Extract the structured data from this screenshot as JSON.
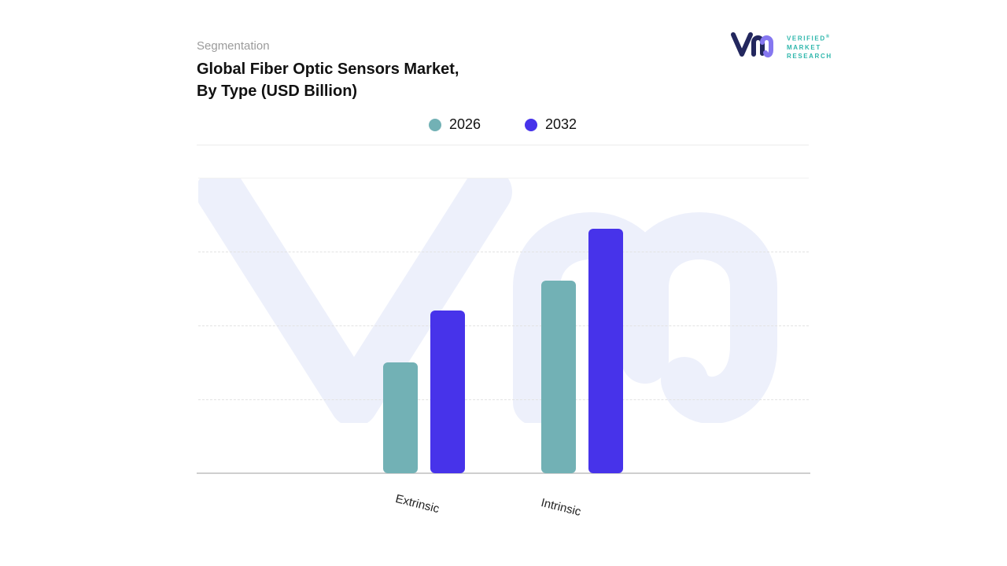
{
  "header": {
    "eyebrow": "Segmentation",
    "title_line1": "Global Fiber Optic Sensors Market,",
    "title_line2": "By Type (USD Billion)"
  },
  "brand": {
    "lines": [
      "VERIFIED",
      "MARKET",
      "RESEARCH"
    ],
    "reg": "®"
  },
  "legend": [
    {
      "label": "2026",
      "color": "#72b1b5"
    },
    {
      "label": "2032",
      "color": "#4733ea"
    }
  ],
  "chart_data": {
    "type": "bar",
    "title": "Global Fiber Optic Sensors Market, By Type (USD Billion)",
    "categories": [
      "Extrinsic",
      "Intrinsic"
    ],
    "series": [
      {
        "name": "2026",
        "color": "#72b1b5",
        "values": [
          1.5,
          2.6
        ]
      },
      {
        "name": "2032",
        "color": "#4733ea",
        "values": [
          2.2,
          3.3
        ]
      }
    ],
    "xlabel": "",
    "ylabel": "USD Billion",
    "ylim": [
      0,
      4
    ],
    "value_labels_shown": false,
    "values_estimated_from_gridlines": true,
    "grid": "dashed-horizontal",
    "legend_position": "top-center",
    "watermark": "VMR monogram"
  }
}
